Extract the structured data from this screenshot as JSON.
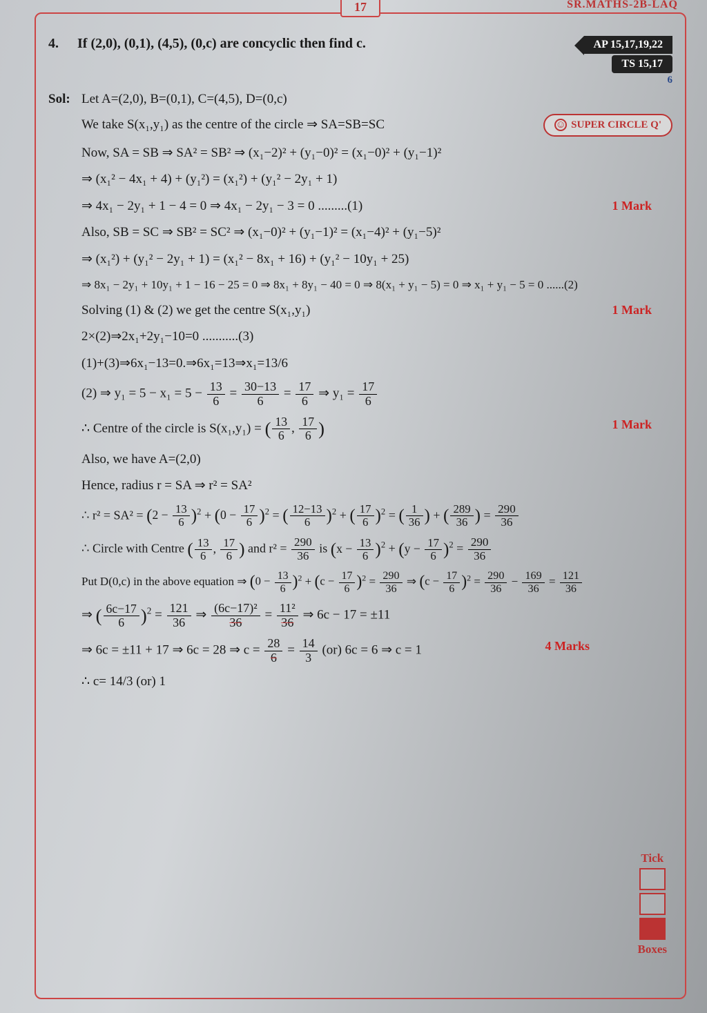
{
  "header": {
    "page_number": "17",
    "book_title": "SR.MATHS-2B-LAQ"
  },
  "question": {
    "number": "4.",
    "text": "If (2,0), (0,1), (4,5), (0,c) are concyclic then find c."
  },
  "badges": {
    "ap": "AP 15,17,19,22",
    "ts": "TS 15,17",
    "sub": "6"
  },
  "solution": {
    "label": "Sol:",
    "let": "Let A=(2,0), B=(0,1), C=(4,5), D=(0,c)",
    "centre_take": "We take S(x₁,y₁) as the centre of the circle ⇒ SA=SB=SC",
    "super_circle": "SUPER CIRCLE Q'",
    "l1": "Now, SA = SB ⇒ SA² = SB² ⇒ (x₁−2)² + (y₁−0)² = (x₁−0)² + (y₁−1)²",
    "l2": "⇒ (x₁² − 4x₁ + 4) + (y₁²) = (x₁²) + (y₁² − 2y₁ + 1)",
    "l3": "⇒ 4x₁ − 2y₁ + 1 − 4 = 0 ⇒ 4x₁ − 2y₁ − 3 = 0 .........(1)",
    "mark1": "1 Mark",
    "l4": "Also, SB = SC ⇒ SB² = SC² ⇒ (x₁−0)² + (y₁−1)² = (x₁−4)² + (y₁−5)²",
    "l5": "⇒ (x₁²) + (y₁² − 2y₁ + 1) = (x₁² − 8x₁ + 16) + (y₁² − 10y₁ + 25)",
    "l6": "⇒ 8x₁ − 2y₁ + 10y₁ + 1 − 16 − 25 = 0 ⇒ 8x₁ + 8y₁ − 40 = 0 ⇒ 8(x₁ + y₁ − 5) = 0 ⇒ x₁ + y₁ − 5 = 0 ......(2)",
    "l7": "Solving (1) & (2) we get the centre S(x₁,y₁)",
    "mark2": "1 Mark",
    "l8": "2×(2)⇒2x₁+2y₁−10=0 ...........(3)",
    "l9": "(1)+(3)⇒6x₁−13=0.⇒6x₁=13⇒x₁=13/6",
    "l10_prefix": "(2) ⇒ y₁ = 5 − x₁ = 5 − ",
    "frac_13_6": {
      "n": "13",
      "d": "6"
    },
    "frac_30_13_6": {
      "n": "30−13",
      "d": "6"
    },
    "frac_17_6": {
      "n": "17",
      "d": "6"
    },
    "l10_suffix": " ⇒ y₁ = ",
    "l11_prefix": "∴ Centre of the circle is S(x₁,y₁) = ",
    "mark3": "1 Mark",
    "l12": "Also, we have A=(2,0)",
    "l13": "Hence, radius r = SA ⇒ r² = SA²",
    "l14_prefix": "∴ r² = SA² = ",
    "frac_12_13_6": {
      "n": "12−13",
      "d": "6"
    },
    "frac_1_36": {
      "n": "1",
      "d": "36"
    },
    "frac_289_36": {
      "n": "289",
      "d": "36"
    },
    "frac_290_36": {
      "n": "290",
      "d": "36"
    },
    "l15_prefix": "∴ Circle with Centre",
    "l15_mid": " and r² = ",
    "l15_is": " is ",
    "l16_prefix": "Put D(0,c) in the above equation ⇒ ",
    "frac_169_36": {
      "n": "169",
      "d": "36"
    },
    "frac_121_36": {
      "n": "121",
      "d": "36"
    },
    "l17_prefix": "⇒ ",
    "frac_6c17_6": {
      "n": "6c−17",
      "d": "6"
    },
    "frac_6c17sq_36": {
      "n": "(6c−17)²",
      "d": "36"
    },
    "frac_11sq_36": {
      "n": "11²",
      "d": "36"
    },
    "l17_suffix": " ⇒ 6c − 17 = ±11",
    "l18_prefix": "⇒ 6c = ±11 + 17 ⇒ 6c = 28 ⇒ c = ",
    "frac_28_6": {
      "n": "28",
      "d": "6"
    },
    "frac_14_3": {
      "n": "14",
      "d": "3"
    },
    "l18_suffix": " (or) 6c = 6 ⇒ c = 1",
    "mark4": "4 Marks",
    "l19": "∴ c= 14/3 (or) 1",
    "tick_label": "Tick",
    "boxes_label": "Boxes"
  },
  "colors": {
    "accent": "#c44",
    "mark": "#c22",
    "badge_bg": "#222",
    "text": "#1a1a1a"
  }
}
